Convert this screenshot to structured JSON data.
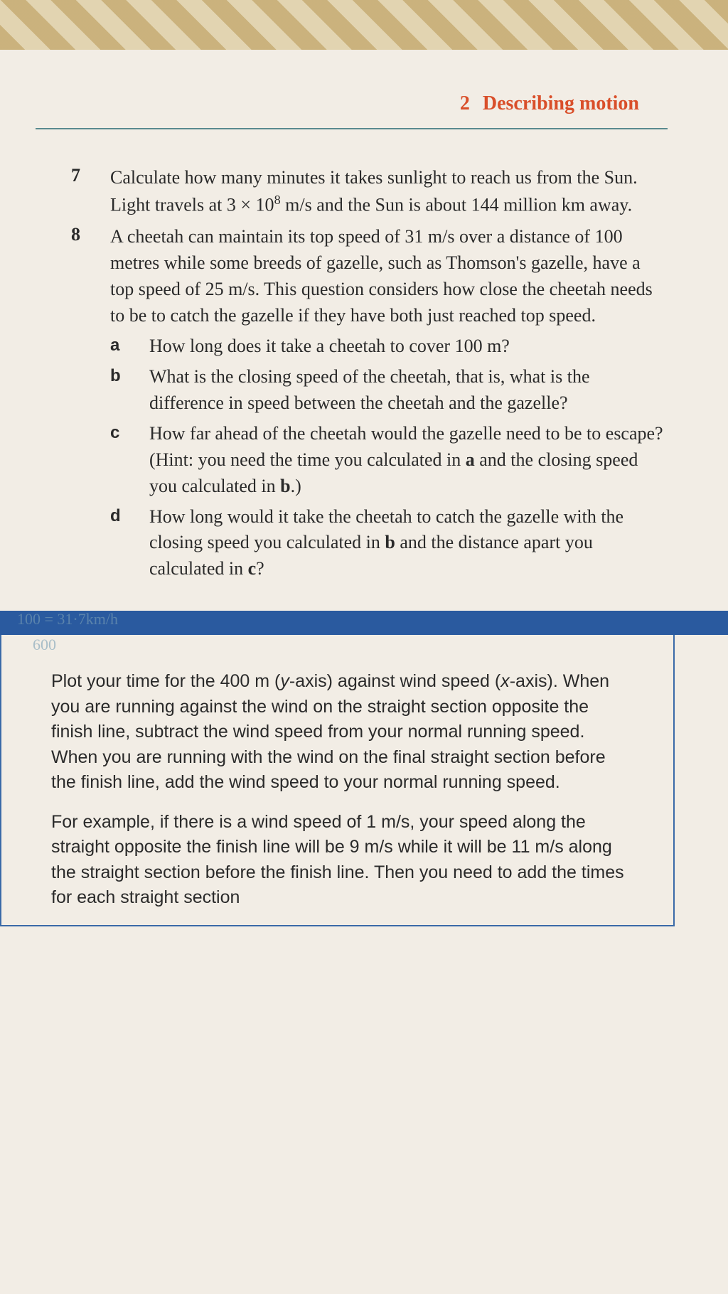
{
  "chapter": {
    "number": "2",
    "title": "Describing motion"
  },
  "questions": [
    {
      "num": "7",
      "text_parts": [
        "Calculate how many minutes it takes sunlight to reach us from the Sun. Light travels at 3 × 10",
        "8",
        " m/s and the Sun is about 144 million km away."
      ]
    },
    {
      "num": "8",
      "intro": "A cheetah can maintain its top speed of 31 m/s over a distance of 100 metres while some breeds of gazelle, such as Thomson's gazelle, have a top speed of 25 m/s. This question considers how close the cheetah needs to be to catch the gazelle if they have both just reached top speed.",
      "subs": [
        {
          "label": "a",
          "text": "How long does it take a cheetah to cover 100 m?"
        },
        {
          "label": "b",
          "text": "What is the closing speed of the cheetah, that is, what is the difference in speed between the cheetah and the gazelle?"
        },
        {
          "label": "c",
          "text_parts": [
            "How far ahead of the cheetah would the gazelle need to be to escape? (Hint: you need the time you calculated in ",
            "a",
            " and the closing speed you calculated in ",
            "b",
            ".)"
          ]
        },
        {
          "label": "d",
          "text_parts": [
            "How long would it take the cheetah to catch the gazelle with the closing speed you calculated in ",
            "b",
            " and the distance apart you calculated in ",
            "c",
            "?"
          ]
        }
      ]
    }
  ],
  "handwriting": {
    "line1": "100 = 31·7km/h",
    "line2": "600"
  },
  "bottom_box": {
    "para1_parts": [
      "Plot your time for the 400 m (",
      "y",
      "-axis) against wind speed (",
      "x",
      "-axis). When you are running against the wind on the straight section opposite the finish line, subtract the wind speed from your normal running speed. When you are running with the wind on the final straight section before the finish line, add the wind speed to your normal running speed."
    ],
    "para2": "For example, if there is a wind speed of 1 m/s, your speed along the straight opposite the finish line will be 9 m/s while it will be 11 m/s along the straight section before the finish line. Then you need to add the times for each straight section"
  },
  "colors": {
    "accent": "#d94f2a",
    "rule": "#5a8a8f",
    "blue_bar": "#2a5a9f",
    "box_border": "#3a6aa8",
    "text": "#2a2a2a",
    "handwriting": "#7a9fb5",
    "page_bg": "#f2ede5"
  }
}
